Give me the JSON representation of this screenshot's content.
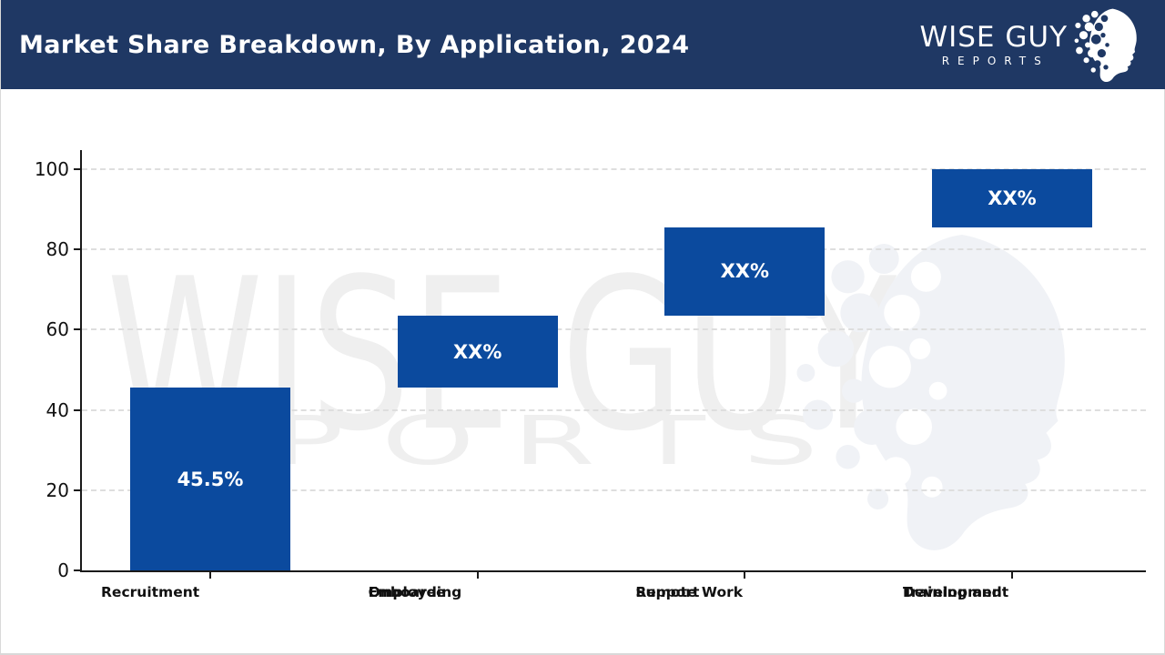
{
  "header": {
    "title": "Market Share Breakdown, By Application, 2024",
    "logo": {
      "line1": "WISE GUY",
      "line2": "REPORTS"
    }
  },
  "watermark": {
    "line1": "WISE GUY",
    "line2": "P O R T S"
  },
  "chart_data": {
    "type": "bar",
    "subtype": "waterfall",
    "title": "Market Share Breakdown, By Application, 2024",
    "categories": [
      "Recruitment",
      "Employee Onboarding",
      "Remote Work Support",
      "Training and Development"
    ],
    "x_label_lines": [
      [
        "Recruitment"
      ],
      [
        "Employee",
        "Onboarding"
      ],
      [
        "Remote Work",
        "Support"
      ],
      [
        "Training and",
        "Development"
      ]
    ],
    "segments": [
      {
        "category": "Recruitment",
        "start": 0,
        "end": 45.5,
        "label": "45.5%"
      },
      {
        "category": "Employee Onboarding",
        "start": 45.5,
        "end": 63.5,
        "label": "XX%"
      },
      {
        "category": "Remote Work Support",
        "start": 63.5,
        "end": 85.5,
        "label": "XX%"
      },
      {
        "category": "Training and Development",
        "start": 85.5,
        "end": 100,
        "label": "XX%"
      }
    ],
    "yticks": [
      0,
      20,
      40,
      60,
      80,
      100
    ],
    "ylim": [
      0,
      105
    ],
    "grid": "horizontal-dashed",
    "legend": "none",
    "bar_color": "#0b4a9e",
    "header_color": "#1f3864"
  }
}
